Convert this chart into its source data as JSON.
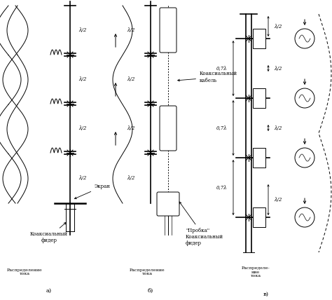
{
  "bg_color": "#ffffff",
  "fig_width": 4.74,
  "fig_height": 4.28,
  "dpi": 100,
  "label_a": "а)",
  "label_b": "б)",
  "label_c": "в)",
  "bottom_text_a": "Распределение\nтока",
  "bottom_text_b": "Распределение\nтока",
  "bottom_text_c": "Распределе-\nние\nтока",
  "lambda_half": "λ/2",
  "lambda_07": "0,7λ",
  "text_ekran": "Экран",
  "text_coax_feeder_a": "Коаксиальный\nфидер",
  "text_coax_cable": "Коаксиальный\nкабель",
  "text_probka": "\"Пробка\"\nКоаксиальный\nфидер"
}
